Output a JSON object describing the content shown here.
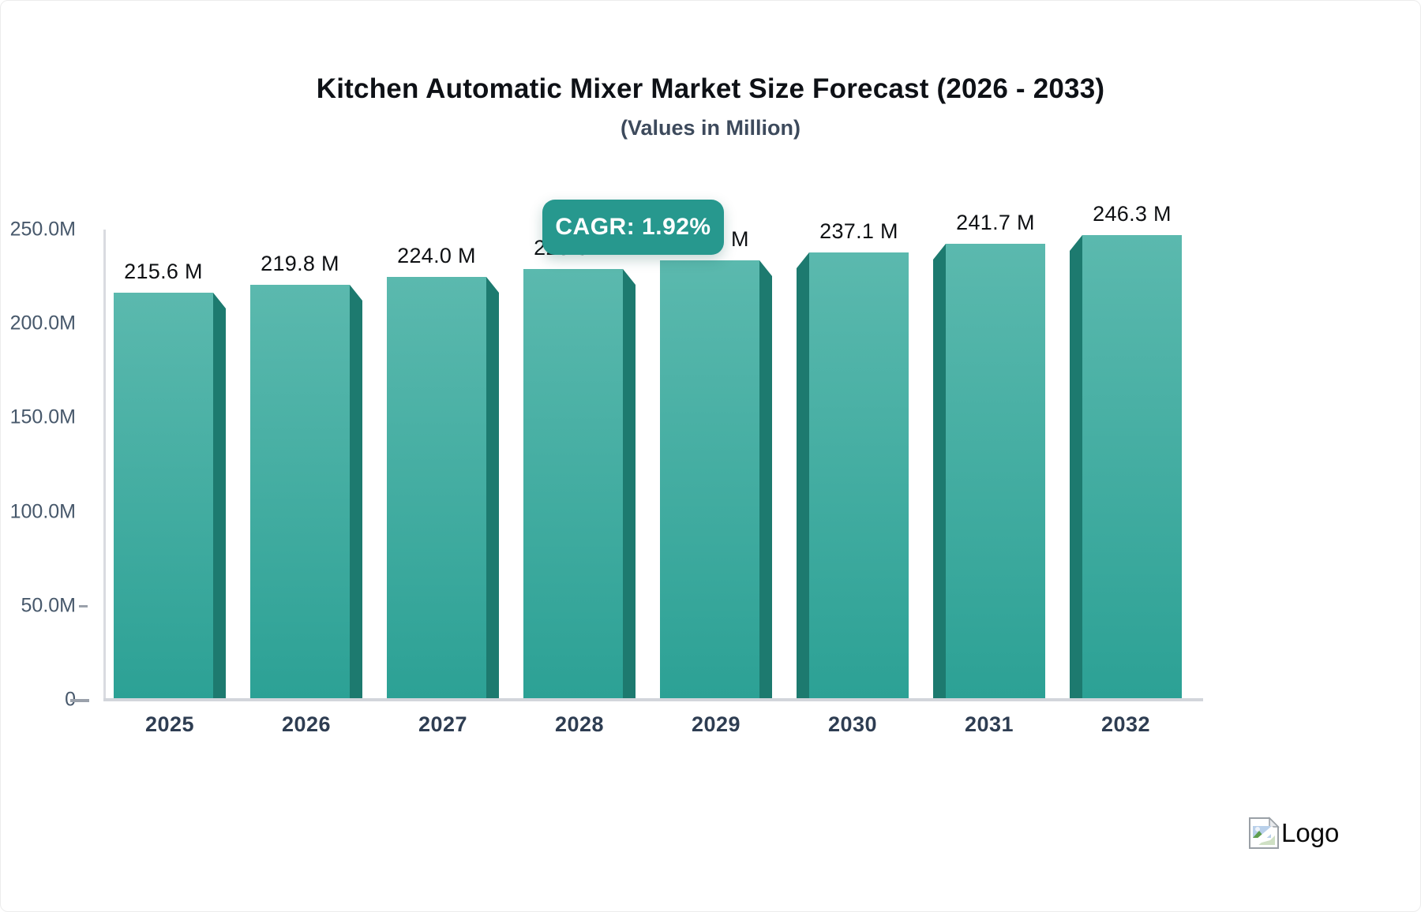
{
  "header": {
    "title": "Kitchen Automatic Mixer Market Size Forecast (2026 - 2033)",
    "subtitle": "(Values in Million)"
  },
  "cagr_badge": {
    "label": "CAGR: 1.92%",
    "bg_color": "#27988e"
  },
  "footer": {
    "logo_alt_text": "Logo"
  },
  "chart_data": {
    "type": "bar",
    "title": "Kitchen Automatic Mixer Market Size Forecast (2026 - 2033)",
    "subtitle": "(Values in Million)",
    "unit": "Million",
    "cagr_pct": 1.92,
    "categories": [
      "2025",
      "2026",
      "2027",
      "2028",
      "2029",
      "2030",
      "2031",
      "2032"
    ],
    "values": [
      215.6,
      219.8,
      224.0,
      228.3,
      232.7,
      237.1,
      241.7,
      246.3
    ],
    "value_labels": [
      "215.6 M",
      "219.8 M",
      "224.0 M",
      "228.3 M",
      "232.7 M",
      "237.1 M",
      "241.7 M",
      "246.3 M"
    ],
    "xlabel": "",
    "ylabel": "",
    "ylim": [
      0,
      250
    ],
    "grid": false,
    "legend": "none",
    "yticks": [
      {
        "label": "250.0M",
        "value": 250,
        "dash": "none"
      },
      {
        "label": "200.0M",
        "value": 200,
        "dash": "none"
      },
      {
        "label": "150.0M",
        "value": 150,
        "dash": "none"
      },
      {
        "label": "100.0M",
        "value": 100,
        "dash": "none"
      },
      {
        "label": "50.0M",
        "value": 50,
        "dash": "short"
      },
      {
        "label": "0",
        "value": 0,
        "dash": "long"
      }
    ],
    "bar_style": {
      "face_gradient_top": "#5bb9ae",
      "face_gradient_bottom": "#2ca195",
      "side_color": "#1d7a6f",
      "extrude_side_by_index": [
        "right",
        "right",
        "right",
        "right",
        "right",
        "left",
        "left",
        "left"
      ]
    },
    "axis_color": "#d2d5db",
    "ytick_color": "#47586b",
    "xtick_color": "#2e3d52"
  }
}
